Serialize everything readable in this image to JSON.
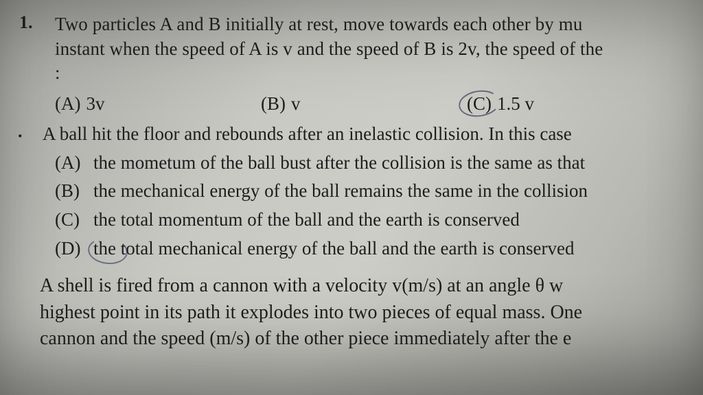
{
  "page": {
    "background_gradient": [
      "#a6a7a3",
      "#cdcdc7",
      "#9e9f9a"
    ],
    "text_color": "#1d1d1d",
    "font_family": "Times New Roman",
    "base_fontsize_pt": 20
  },
  "q1": {
    "number": "1.",
    "stem_line1": "Two particles A and B initially at rest, move towards each other by mu",
    "stem_line2": "instant when the speed of A is v and the speed of B is 2v, the speed of the",
    "colon": ":",
    "options": {
      "A": {
        "label": "(A)",
        "text": "3v"
      },
      "B": {
        "label": "(B)",
        "text": "v"
      },
      "C": {
        "label": "(C)",
        "text": "1.5 v",
        "circled": true
      }
    }
  },
  "q2": {
    "lead_bullet": ".",
    "stem": "A ball hit the floor and rebounds after an inelastic collision. In this case",
    "choices": {
      "A": {
        "label": "(A)",
        "text": "the mometum of the ball bust after the collision is the same as that"
      },
      "B": {
        "label": "(B)",
        "text": "the mechanical energy of the ball remains the same in the collision"
      },
      "C": {
        "label": "(C)",
        "text": "the total momentum of the ball and the earth is conserved"
      },
      "D": {
        "label": "(D)",
        "text": "the total mechanical energy of the ball and the earth is conserved",
        "circled": true
      }
    }
  },
  "q3": {
    "line1": "A shell is fired from a cannon with a velocity v(m/s) at an angle θ w",
    "line2": "highest point in its path it explodes into two pieces of equal mass. One",
    "line3": "cannon and the speed (m/s) of the other piece immediately after the e"
  },
  "ink": {
    "color": "rgba(20,30,70,0.55)",
    "stroke_width": 2
  }
}
